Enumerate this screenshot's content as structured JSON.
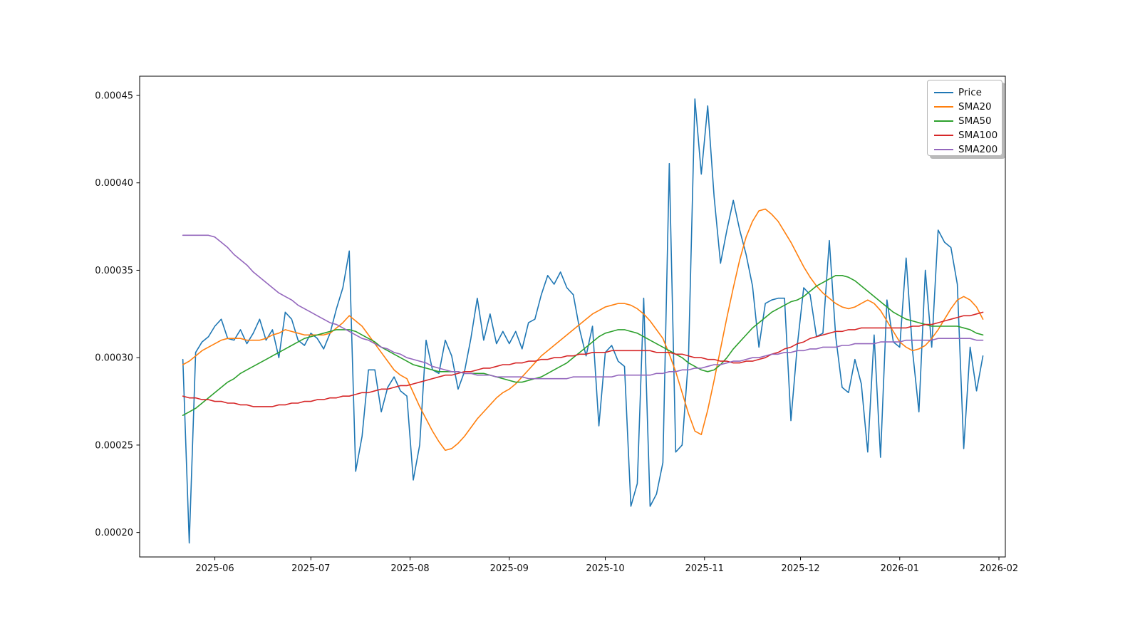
{
  "figure": {
    "background_color": "#ffffff",
    "spine_color": "#000000"
  },
  "legend": {
    "position": "upper-right",
    "items": [
      "Price",
      "SMA20",
      "SMA50",
      "SMA100",
      "SMA200"
    ]
  },
  "chart_data": {
    "type": "line",
    "title": "",
    "xlabel": "",
    "ylabel": "",
    "grid": false,
    "legend_position": "upper right",
    "x_start_date": "2025-05-22",
    "x_step_days": 2,
    "x_domain_days": [
      -13.5,
      257
    ],
    "x_ticks": {
      "labels": [
        "2025-06",
        "2025-07",
        "2025-08",
        "2025-09",
        "2025-10",
        "2025-11",
        "2025-12",
        "2026-01",
        "2026-02"
      ],
      "day_offsets": [
        10,
        40,
        71,
        102,
        132,
        163,
        193,
        224,
        255
      ]
    },
    "value_scale": 1e-06,
    "y_domain": [
      186,
      461
    ],
    "y_ticks": {
      "labels": [
        "0.00020",
        "0.00025",
        "0.00030",
        "0.00035",
        "0.00040",
        "0.00045"
      ],
      "values": [
        200,
        250,
        300,
        350,
        400,
        450
      ]
    },
    "series": [
      {
        "name": "Price",
        "color": "#1f77b4",
        "values": [
          299,
          194,
          303,
          309,
          312,
          318,
          322,
          311,
          310,
          316,
          308,
          314,
          322,
          310,
          316,
          300,
          326,
          322,
          310,
          307,
          314,
          311,
          305,
          314,
          328,
          340,
          361,
          235,
          255,
          293,
          293,
          269,
          283,
          289,
          281,
          278,
          230,
          250,
          310,
          293,
          291,
          310,
          301,
          282,
          292,
          311,
          334,
          310,
          325,
          308,
          315,
          308,
          315,
          305,
          320,
          322,
          336,
          347,
          342,
          349,
          340,
          336,
          316,
          301,
          318,
          261,
          303,
          307,
          298,
          295,
          215,
          228,
          334,
          215,
          222,
          240,
          411,
          246,
          250,
          300,
          448,
          405,
          444,
          392,
          354,
          373,
          390,
          373,
          359,
          341,
          306,
          331,
          333,
          334,
          334,
          264,
          307,
          340,
          336,
          312,
          314,
          367,
          312,
          283,
          280,
          299,
          285,
          246,
          313,
          243,
          333,
          309,
          306,
          357,
          304,
          269,
          350,
          306,
          373,
          366,
          363,
          342,
          248,
          306,
          281,
          301
        ]
      },
      {
        "name": "SMA20",
        "color": "#ff7f0e",
        "values": [
          296,
          298,
          301,
          304,
          306,
          308,
          310,
          311,
          311,
          311,
          310,
          310,
          310,
          311,
          313,
          314,
          316,
          315,
          314,
          313,
          313,
          313,
          313,
          314,
          317,
          320,
          324,
          321,
          318,
          313,
          308,
          303,
          298,
          293,
          290,
          288,
          280,
          272,
          265,
          258,
          252,
          247,
          248,
          251,
          255,
          260,
          265,
          269,
          273,
          277,
          280,
          282,
          285,
          289,
          293,
          297,
          301,
          304,
          307,
          310,
          313,
          316,
          319,
          322,
          325,
          327,
          329,
          330,
          331,
          331,
          330,
          328,
          325,
          321,
          316,
          311,
          302,
          292,
          280,
          268,
          258,
          256,
          270,
          287,
          305,
          323,
          340,
          356,
          369,
          378,
          384,
          385,
          382,
          378,
          372,
          366,
          359,
          352,
          346,
          341,
          337,
          334,
          331,
          329,
          328,
          329,
          331,
          333,
          331,
          327,
          321,
          315,
          309,
          306,
          304,
          305,
          307,
          311,
          316,
          322,
          328,
          333,
          335,
          333,
          329,
          322
        ]
      },
      {
        "name": "SMA50",
        "color": "#2ca02c",
        "values": [
          267,
          269,
          271,
          274,
          277,
          280,
          283,
          286,
          288,
          291,
          293,
          295,
          297,
          299,
          301,
          303,
          305,
          307,
          309,
          311,
          312,
          313,
          314,
          315,
          316,
          316,
          316,
          315,
          313,
          311,
          309,
          306,
          304,
          302,
          300,
          298,
          296,
          295,
          294,
          293,
          292,
          292,
          292,
          292,
          291,
          291,
          291,
          291,
          290,
          289,
          288,
          287,
          286,
          286,
          287,
          288,
          289,
          291,
          293,
          295,
          297,
          300,
          303,
          306,
          309,
          312,
          314,
          315,
          316,
          316,
          315,
          314,
          312,
          310,
          308,
          306,
          304,
          302,
          300,
          297,
          295,
          293,
          292,
          293,
          296,
          300,
          305,
          309,
          313,
          317,
          320,
          323,
          326,
          328,
          330,
          332,
          333,
          335,
          338,
          341,
          343,
          345,
          347,
          347,
          346,
          344,
          341,
          338,
          335,
          332,
          329,
          326,
          324,
          322,
          321,
          320,
          319,
          318,
          318,
          318,
          318,
          318,
          317,
          316,
          314,
          313
        ]
      },
      {
        "name": "SMA100",
        "color": "#d62728",
        "values": [
          278,
          277,
          277,
          276,
          276,
          275,
          275,
          274,
          274,
          273,
          273,
          272,
          272,
          272,
          272,
          273,
          273,
          274,
          274,
          275,
          275,
          276,
          276,
          277,
          277,
          278,
          278,
          279,
          280,
          280,
          281,
          282,
          282,
          283,
          284,
          284,
          285,
          286,
          287,
          288,
          289,
          290,
          290,
          291,
          292,
          292,
          293,
          294,
          294,
          295,
          296,
          296,
          297,
          297,
          298,
          298,
          299,
          299,
          300,
          300,
          301,
          301,
          302,
          302,
          303,
          303,
          303,
          304,
          304,
          304,
          304,
          304,
          304,
          304,
          303,
          303,
          303,
          302,
          302,
          301,
          300,
          300,
          299,
          299,
          298,
          298,
          297,
          297,
          298,
          298,
          299,
          300,
          302,
          303,
          305,
          306,
          308,
          309,
          311,
          312,
          313,
          314,
          315,
          315,
          316,
          316,
          317,
          317,
          317,
          317,
          317,
          317,
          317,
          317,
          318,
          318,
          319,
          319,
          320,
          321,
          322,
          323,
          324,
          324,
          325,
          326
        ]
      },
      {
        "name": "SMA200",
        "color": "#9467bd",
        "values": [
          370,
          370,
          370,
          370,
          370,
          369,
          366,
          363,
          359,
          356,
          353,
          349,
          346,
          343,
          340,
          337,
          335,
          333,
          330,
          328,
          326,
          324,
          322,
          320,
          319,
          317,
          315,
          313,
          311,
          310,
          308,
          306,
          305,
          303,
          302,
          300,
          299,
          298,
          297,
          295,
          294,
          293,
          292,
          292,
          291,
          291,
          290,
          290,
          290,
          289,
          289,
          289,
          289,
          289,
          288,
          288,
          288,
          288,
          288,
          288,
          288,
          289,
          289,
          289,
          289,
          289,
          289,
          289,
          290,
          290,
          290,
          290,
          290,
          290,
          291,
          291,
          292,
          292,
          293,
          293,
          294,
          294,
          295,
          296,
          296,
          297,
          298,
          298,
          299,
          300,
          300,
          301,
          302,
          302,
          303,
          303,
          304,
          304,
          305,
          305,
          306,
          306,
          306,
          307,
          307,
          308,
          308,
          308,
          308,
          309,
          309,
          309,
          309,
          310,
          310,
          310,
          310,
          310,
          311,
          311,
          311,
          311,
          311,
          311,
          310,
          310
        ]
      }
    ]
  }
}
